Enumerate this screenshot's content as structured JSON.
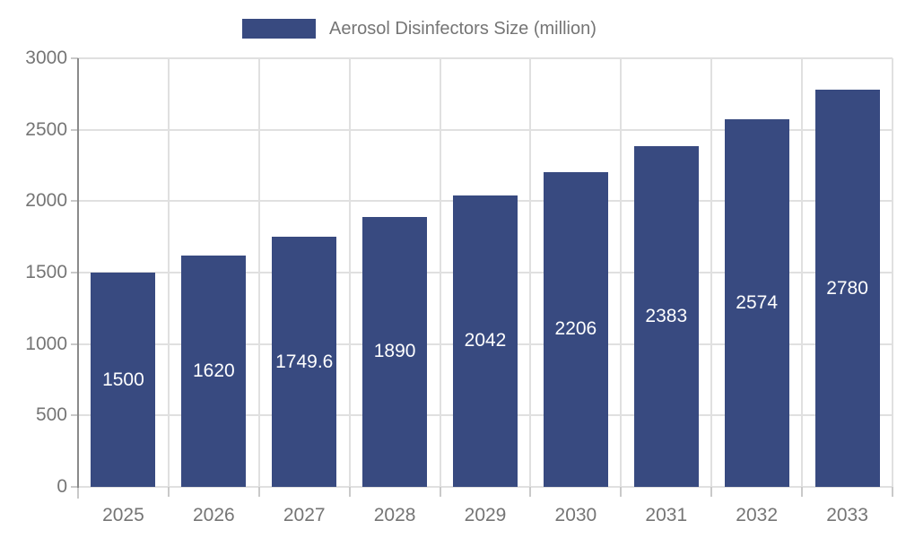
{
  "legend": {
    "label": "Aerosol Disinfectors Size (million)"
  },
  "chart_data": {
    "type": "bar",
    "title": "Aerosol Disinfectors Size (million)",
    "categories": [
      "2025",
      "2026",
      "2027",
      "2028",
      "2029",
      "2030",
      "2031",
      "2032",
      "2033"
    ],
    "values": [
      1500,
      1620,
      1749.6,
      1890,
      2042,
      2206,
      2383,
      2574,
      2780
    ],
    "value_labels": [
      "1500",
      "1620",
      "1749.6",
      "1890",
      "2042",
      "2206",
      "2383",
      "2574",
      "2780"
    ],
    "xlabel": "",
    "ylabel": "",
    "ylim": [
      0,
      3000
    ],
    "y_ticks": [
      0,
      500,
      1000,
      1500,
      2000,
      2500,
      3000
    ],
    "grid": true,
    "legend_position": "top-center",
    "bar_label_position": "inside-center"
  },
  "colors": {
    "bar": "#384a80",
    "bar_label": "#ffffff",
    "grid_line": "#e0e0e0",
    "axis_line": "#8a8a8a",
    "tick_mark": "#c9c9c9",
    "tick_label": "#757575",
    "legend_text": "#757575",
    "background": "#ffffff"
  }
}
